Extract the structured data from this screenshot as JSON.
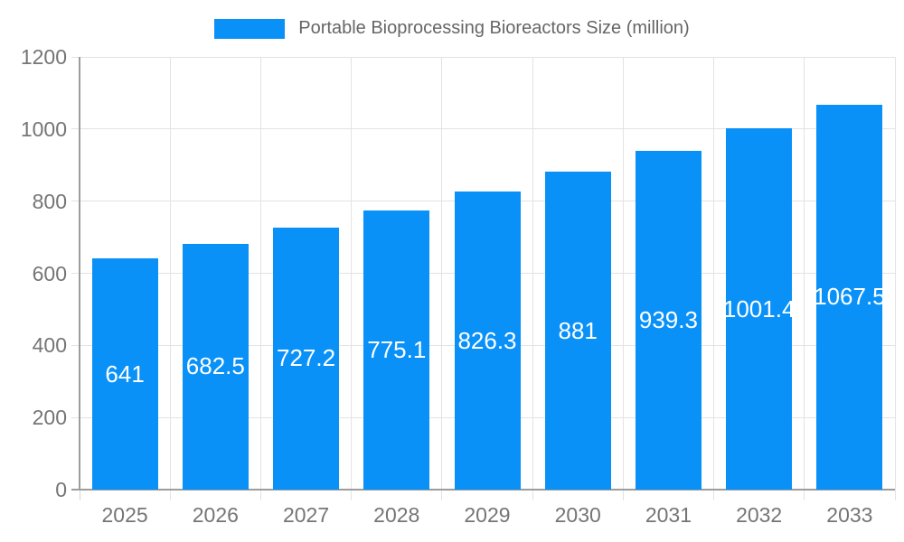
{
  "chart_data": {
    "type": "bar",
    "title": "Portable Bioprocessing Bioreactors Size (million)",
    "legend_entries": [
      "Portable Bioprocessing Bioreactors Size (million)"
    ],
    "legend_position": "top-center",
    "categories": [
      "2025",
      "2026",
      "2027",
      "2028",
      "2029",
      "2030",
      "2031",
      "2032",
      "2033"
    ],
    "values": [
      641,
      682.5,
      727.2,
      775.1,
      826.3,
      881,
      939.3,
      1001.4,
      1067.5
    ],
    "value_labels": [
      "641",
      "682.5",
      "727.2",
      "775.1",
      "826.3",
      "881",
      "939.3",
      "1001.4",
      "1067.5"
    ],
    "xlabel": "",
    "ylabel": "",
    "ylim": [
      0,
      1200
    ],
    "yticks": [
      0,
      200,
      400,
      600,
      800,
      1000,
      1200
    ],
    "grid": true,
    "colors": {
      "bar": "#0a91f8",
      "bar_label": "#ffffff",
      "axis_line": "#9c9c9c",
      "gridline": "#e3e3e3",
      "tick": "#d6d6d6",
      "tick_label": "#757575",
      "legend_text": "#666666",
      "background": "#ffffff"
    }
  }
}
